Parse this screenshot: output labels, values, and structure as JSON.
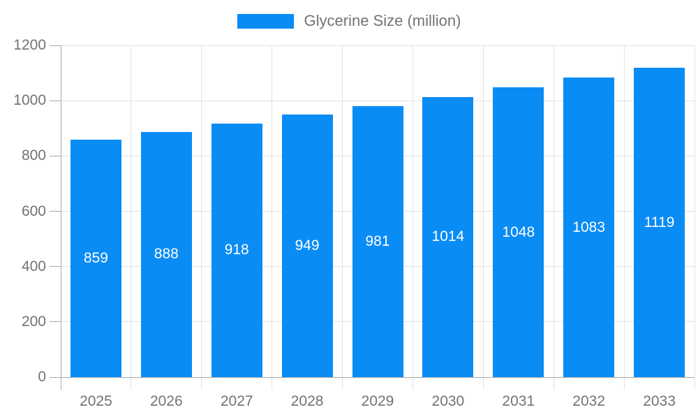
{
  "legend": {
    "items": [
      {
        "label": "Glycerine Size (million)",
        "color": "#0a8cf5"
      }
    ]
  },
  "chart_data": {
    "type": "bar",
    "title": "",
    "categories": [
      "2025",
      "2026",
      "2027",
      "2028",
      "2029",
      "2030",
      "2031",
      "2032",
      "2033"
    ],
    "series": [
      {
        "name": "Glycerine Size (million)",
        "values": [
          859,
          888,
          918,
          949,
          981,
          1014,
          1048,
          1083,
          1119
        ],
        "color": "#0a8cf5"
      }
    ],
    "value_labels": [
      859,
      888,
      918,
      949,
      981,
      1014,
      1048,
      1083,
      1119
    ],
    "value_label_position": "inside-middle",
    "xlabel": "",
    "ylabel": "",
    "ylim": [
      0,
      1200
    ],
    "yticks": [
      0,
      200,
      400,
      600,
      800,
      1000,
      1200
    ],
    "grid": true,
    "legend_position": "top"
  },
  "colors": {
    "bar": "#0a8cf5",
    "axis_text": "#737373",
    "axis_line": "#a8a8a8",
    "gridline": "#e2e2e2",
    "value_label_text": "#ffffff",
    "background": "#ffffff"
  }
}
